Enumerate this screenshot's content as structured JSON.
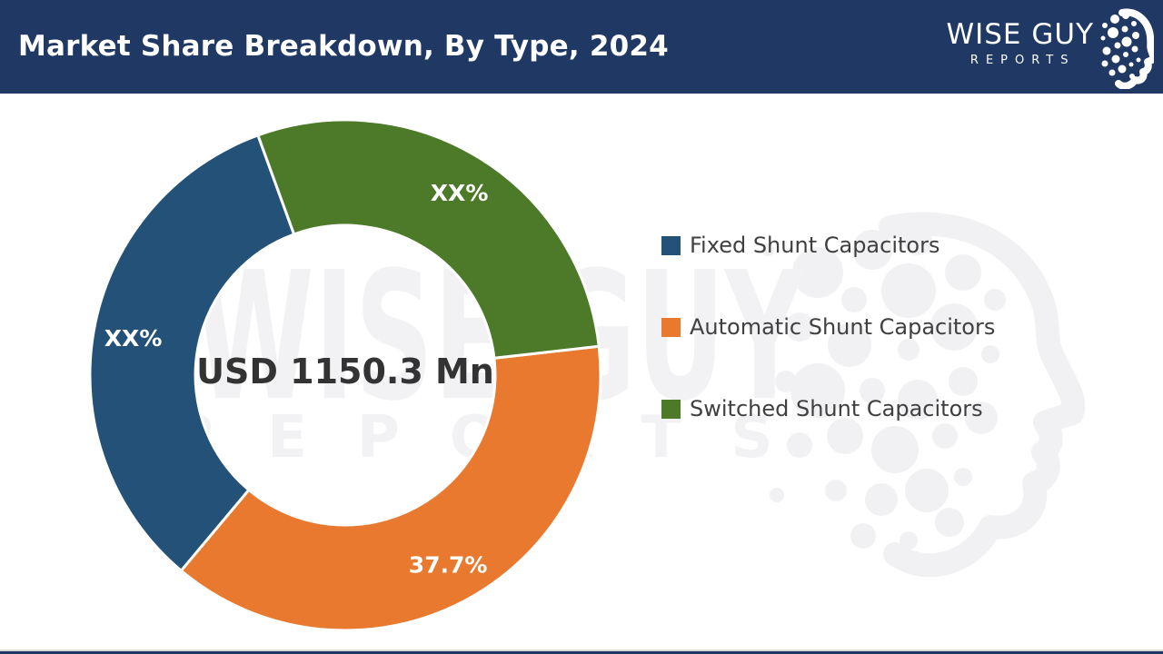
{
  "header": {
    "title": "Market Share Breakdown, By Type, 2024",
    "background": "#1F3864",
    "logo": {
      "wordmark": "WISE GUY",
      "subtext": "REPORTS"
    }
  },
  "watermark": {
    "line1": "WISE GUY",
    "line2": "REPORTS"
  },
  "chart_data": {
    "type": "donut",
    "title": "Market Share Breakdown, By Type, 2024",
    "center_label": "USD 1150.3 Mn",
    "legend_position": "right",
    "segments": [
      {
        "name": "Fixed Shunt Capacitors",
        "color": "#235178",
        "label": "XX%",
        "start_deg": 110,
        "end_deg": 230,
        "label_deg": 170
      },
      {
        "name": "Automatic Shunt Capacitors",
        "color": "#E8792F",
        "label": "37.7%",
        "value_pct": 37.7,
        "start_deg": 230,
        "end_deg": 366.5,
        "label_deg": 298.5
      },
      {
        "name": "Switched Shunt Capacitors",
        "color": "#4C7A28",
        "label": "XX%",
        "start_deg": 6.5,
        "end_deg": 110,
        "label_deg": 58
      }
    ]
  }
}
